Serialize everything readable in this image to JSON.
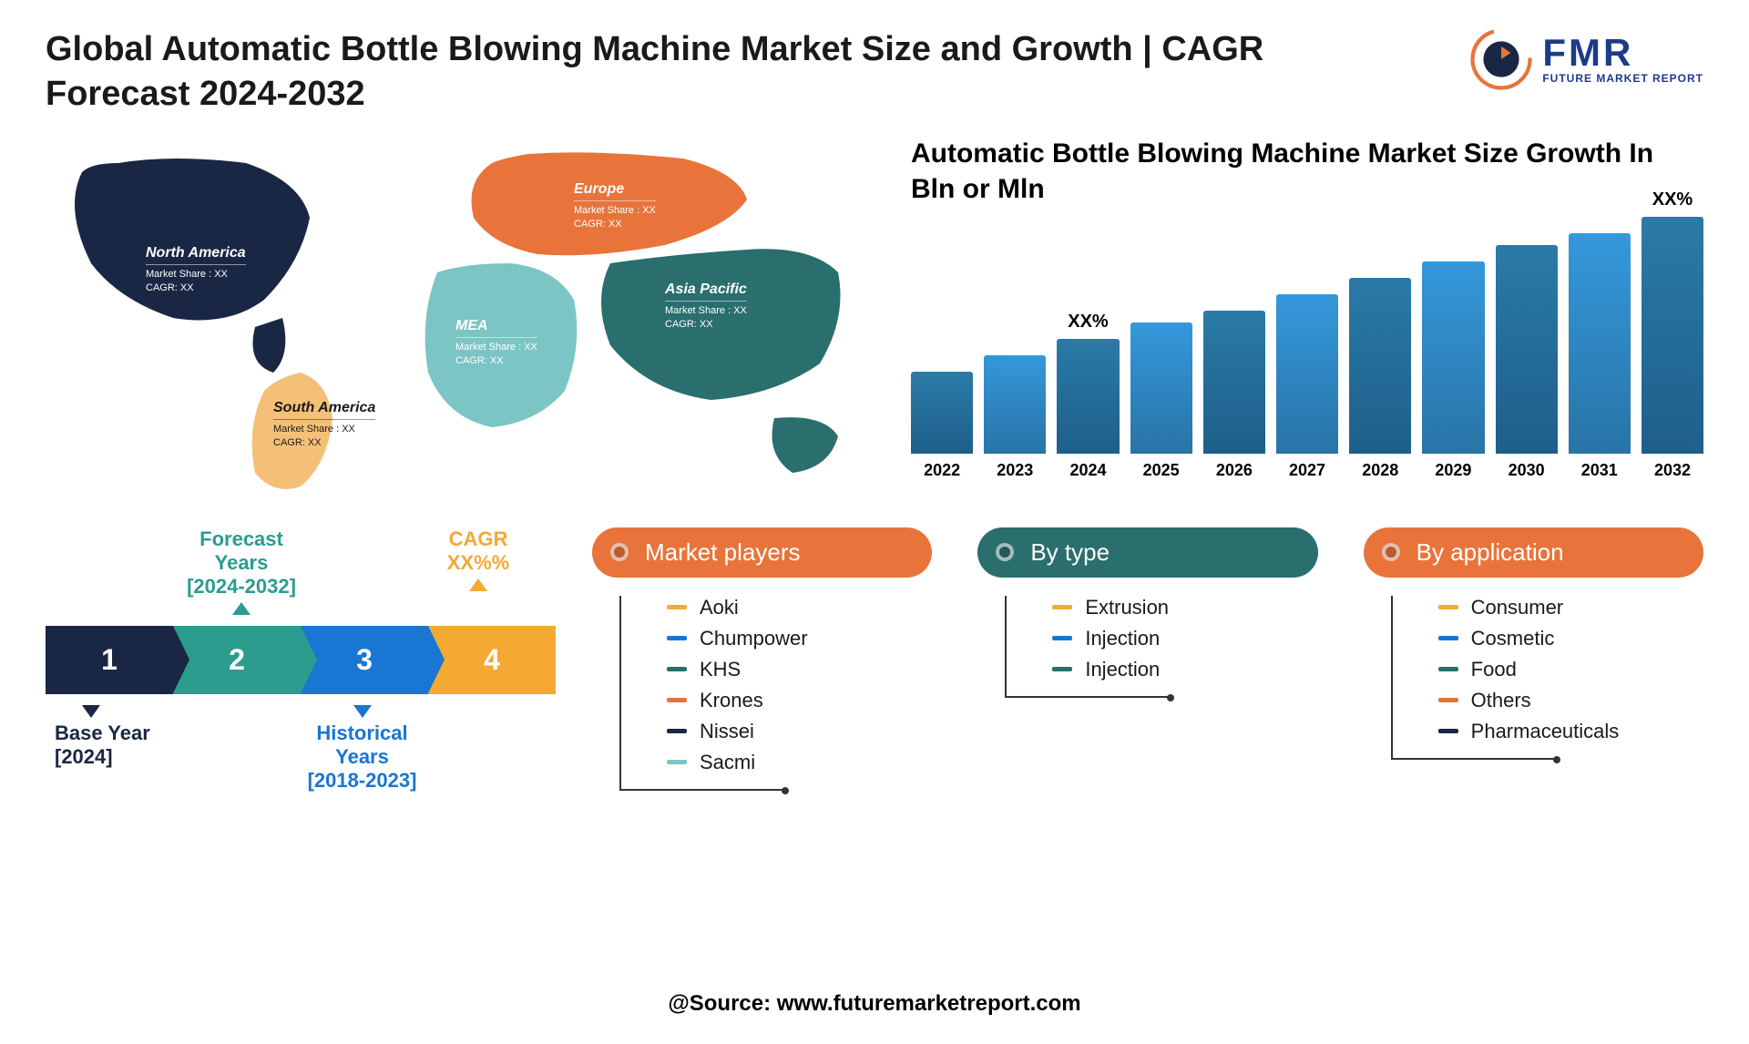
{
  "title": "Global Automatic Bottle Blowing Machine Market Size and Growth | CAGR Forecast 2024-2032",
  "logo": {
    "fmr": "FMR",
    "sub": "FUTURE MARKET REPORT"
  },
  "map": {
    "regions": [
      {
        "name": "North America",
        "share": "Market Share : XX",
        "cagr": "CAGR: XX",
        "color": "#1a2744"
      },
      {
        "name": "South America",
        "share": "Market Share : XX",
        "cagr": "CAGR: XX",
        "color": "#f4c078"
      },
      {
        "name": "Europe",
        "share": "Market Share : XX",
        "cagr": "CAGR: XX",
        "color": "#e8743b"
      },
      {
        "name": "MEA",
        "share": "Market Share : XX",
        "cagr": "CAGR: XX",
        "color": "#7bc5c5"
      },
      {
        "name": "Asia Pacific",
        "share": "Market Share : XX",
        "cagr": "CAGR: XX",
        "color": "#2a6e6e"
      }
    ]
  },
  "chart": {
    "title": "Automatic Bottle Blowing Machine Market Size Growth In\nBln or Mln",
    "type": "bar",
    "years": [
      "2022",
      "2023",
      "2024",
      "2025",
      "2026",
      "2027",
      "2028",
      "2029",
      "2030",
      "2031",
      "2032"
    ],
    "values": [
      100,
      120,
      140,
      160,
      175,
      195,
      215,
      235,
      255,
      270,
      290
    ],
    "max_height": 260,
    "bar_color_even": "#1e5f8a",
    "bar_color_odd": "#2e86c1",
    "annotations": {
      "2024": "XX%",
      "2032": "XX%"
    },
    "label_fontsize": 18
  },
  "timeline": {
    "forecast": {
      "label": "Forecast Years",
      "range": "[2024-2032]",
      "color": "#2a9d8f"
    },
    "cagr": {
      "label": "CAGR",
      "value": "XX%%",
      "color": "#f4a933"
    },
    "base": {
      "label": "Base Year",
      "range": "[2024]",
      "color": "#1a2744"
    },
    "hist": {
      "label": "Historical Years",
      "range": "[2018-2023]",
      "color": "#1976d2"
    },
    "segments": [
      {
        "num": "1",
        "color": "#1a2744"
      },
      {
        "num": "2",
        "color": "#2a9d8f"
      },
      {
        "num": "3",
        "color": "#1976d2"
      },
      {
        "num": "4",
        "color": "#f4a933"
      }
    ]
  },
  "columns": [
    {
      "title": "Market players",
      "pill_color": "#e8743b",
      "items": [
        {
          "label": "Aoki",
          "color": "#f4a933"
        },
        {
          "label": "Chumpower",
          "color": "#1976d2"
        },
        {
          "label": "KHS",
          "color": "#2a6e6e"
        },
        {
          "label": "Krones",
          "color": "#e8743b"
        },
        {
          "label": "Nissei",
          "color": "#1a2744"
        },
        {
          "label": "Sacmi",
          "color": "#7bc5c5"
        }
      ]
    },
    {
      "title": "By type",
      "pill_color": "#2a6e6e",
      "items": [
        {
          "label": "Extrusion",
          "color": "#f4a933"
        },
        {
          "label": "Injection",
          "color": "#1976d2"
        },
        {
          "label": "Injection",
          "color": "#2a6e6e"
        }
      ]
    },
    {
      "title": "By application",
      "pill_color": "#e8743b",
      "items": [
        {
          "label": "Consumer",
          "color": "#f4a933"
        },
        {
          "label": "Cosmetic",
          "color": "#1976d2"
        },
        {
          "label": "Food",
          "color": "#2a6e6e"
        },
        {
          "label": "Others",
          "color": "#e8743b"
        },
        {
          "label": "Pharmaceuticals",
          "color": "#1a2744"
        }
      ]
    }
  ],
  "source": "@Source: www.futuremarketreport.com"
}
